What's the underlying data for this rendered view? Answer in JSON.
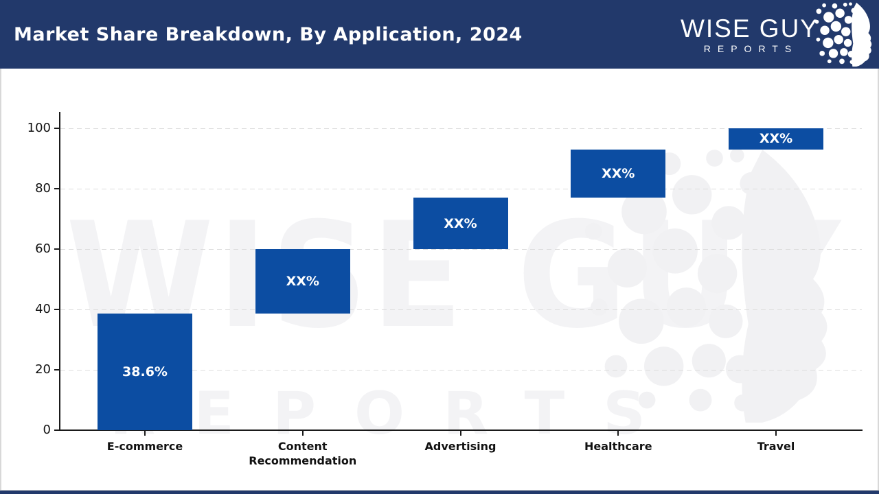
{
  "header": {
    "title": "Market Share Breakdown, By Application, 2024",
    "logo": {
      "line1": "WISE GUY",
      "line2": "REPORTS"
    }
  },
  "watermark": {
    "line1": "WISE GUY",
    "line2": "REPORTS"
  },
  "colors": {
    "header_bg": "#22396B",
    "bar": "#0C4DA2",
    "bar_label": "#FFFFFF",
    "grid": "#DCDCDC",
    "axis": "#1A1A1A",
    "watermark": "#F3F3F5",
    "title_text": "#FFFFFF"
  },
  "chart_data": {
    "type": "bar",
    "subtype": "waterfall",
    "title": "Market Share Breakdown, By Application, 2024",
    "xlabel": "",
    "ylabel": "",
    "ylim": [
      0,
      105
    ],
    "y_ticks": [
      0,
      20,
      40,
      60,
      80,
      100
    ],
    "grid": "horizontal-dashed",
    "legend": "none",
    "categories": [
      "E-commerce",
      "Content Recommendation",
      "Advertising",
      "Healthcare",
      "Travel"
    ],
    "segments": [
      {
        "category": "E-commerce",
        "start": 0,
        "end": 38.6,
        "value": 38.6,
        "bar_label": "38.6%"
      },
      {
        "category": "Content Recommendation",
        "start": 38.6,
        "end": 60,
        "value": 21.4,
        "bar_label": "XX%"
      },
      {
        "category": "Advertising",
        "start": 60,
        "end": 77,
        "value": 17,
        "bar_label": "XX%"
      },
      {
        "category": "Healthcare",
        "start": 77,
        "end": 93,
        "value": 16,
        "bar_label": "XX%"
      },
      {
        "category": "Travel",
        "start": 93,
        "end": 100,
        "value": 7,
        "bar_label": "XX%"
      }
    ]
  }
}
